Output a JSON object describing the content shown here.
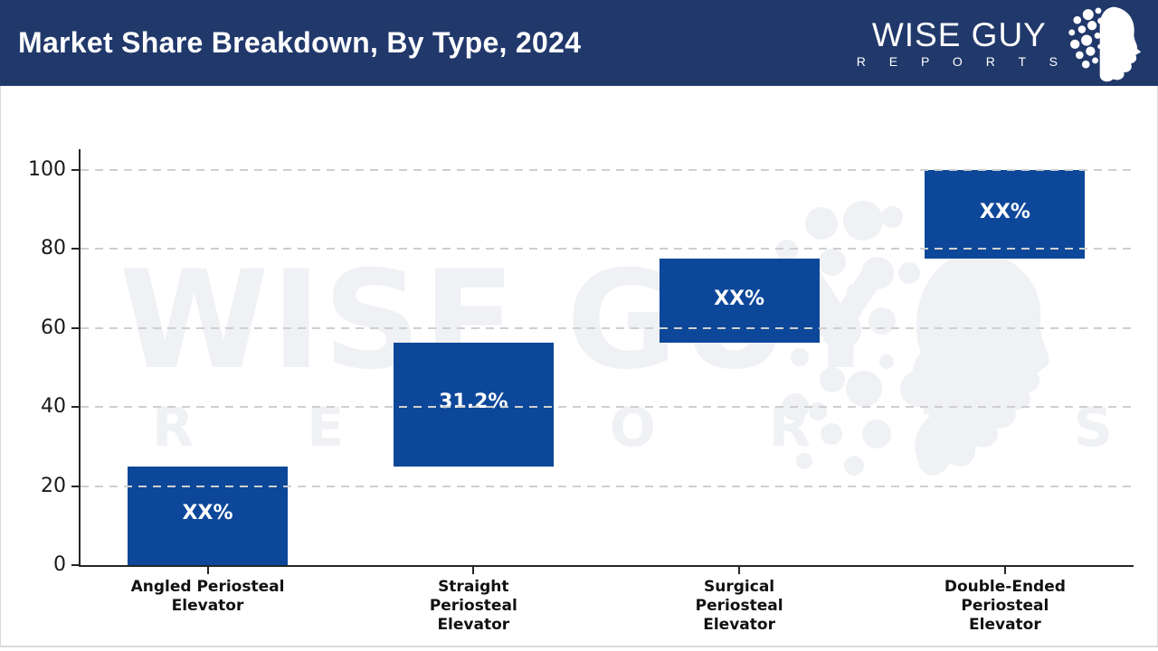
{
  "header": {
    "title": "Market Share Breakdown, By Type, 2024",
    "bg_color": "#21386b",
    "brand": {
      "name_line1": "WISE GUY",
      "name_line2": "R E P O R T S"
    }
  },
  "watermark": {
    "line1": "WISE GUY",
    "line2": "R E P O R T S"
  },
  "chart_data": {
    "type": "bar",
    "subtype": "floating-waterfall",
    "title": "Market Share Breakdown, By Type, 2024",
    "categories": [
      "Angled Periosteal\nElevator",
      "Straight\nPeriosteal\nElevator",
      "Surgical\nPeriosteal\nElevator",
      "Double-Ended\nPeriosteal\nElevator"
    ],
    "bars": [
      {
        "start": 0,
        "end": 25,
        "label": "XX%"
      },
      {
        "start": 25,
        "end": 56.2,
        "label": "31.2%"
      },
      {
        "start": 56.2,
        "end": 77.5,
        "label": "XX%"
      },
      {
        "start": 77.5,
        "end": 100,
        "label": "XX%"
      }
    ],
    "yticks": [
      0,
      20,
      40,
      60,
      80,
      100
    ],
    "ylim": [
      0,
      104
    ],
    "grid": "horizontal-dashed",
    "legend": "none",
    "bar_color": "#0d4799",
    "bar_label_color": "#ffffff",
    "axis_color": "#262626",
    "gridline_color": "#cfcfcf"
  }
}
